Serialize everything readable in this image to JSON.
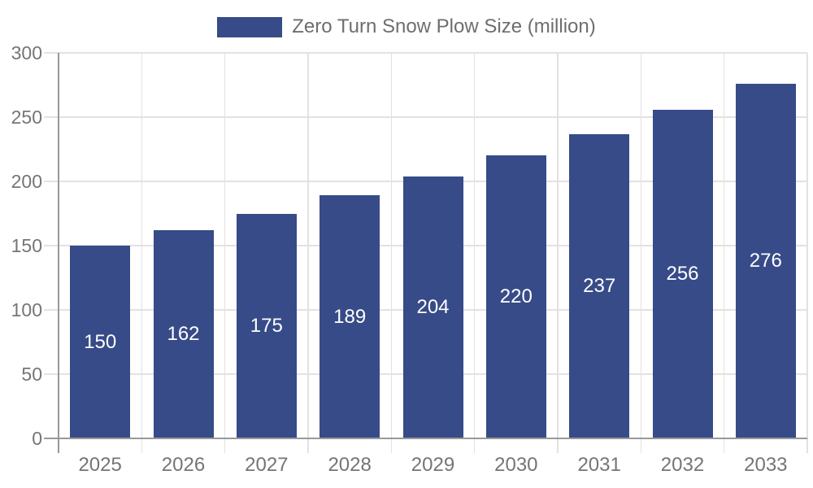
{
  "legend": {
    "label": "Zero Turn Snow Plow Size (million)"
  },
  "chart_data": {
    "type": "bar",
    "title": "Zero Turn Snow Plow Size (million)",
    "categories": [
      "2025",
      "2026",
      "2027",
      "2028",
      "2029",
      "2030",
      "2031",
      "2032",
      "2033"
    ],
    "values": [
      150,
      162,
      175,
      189,
      204,
      220,
      237,
      256,
      276
    ],
    "series": [
      {
        "name": "Zero Turn Snow Plow Size (million)",
        "values": [
          150,
          162,
          175,
          189,
          204,
          220,
          237,
          256,
          276
        ]
      }
    ],
    "xlabel": "",
    "ylabel": "",
    "ylim": [
      0,
      300
    ],
    "yticks": [
      0,
      50,
      100,
      150,
      200,
      250,
      300
    ],
    "grid": true,
    "legend_position": "top-center",
    "bar_label_position": "inside-center",
    "colors": {
      "bar": "#374B88",
      "grid": "#E2E2E2",
      "axis": "#999999",
      "tick_label": "#757575",
      "legend_text": "#6E6E6E",
      "value_label": "#FFFFFF",
      "background": "#FFFFFF"
    }
  }
}
